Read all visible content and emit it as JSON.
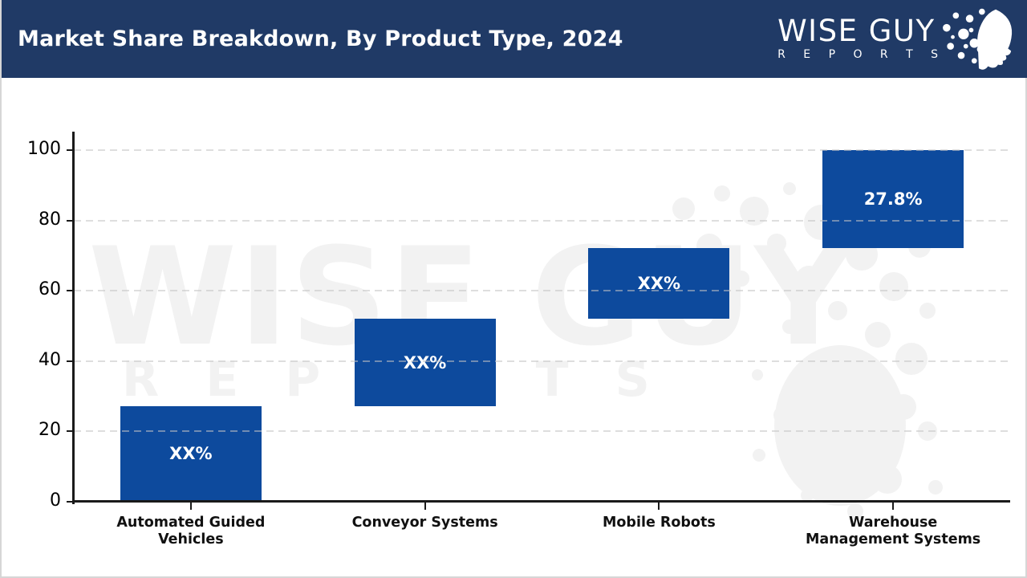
{
  "header": {
    "title": "Market Share Breakdown, By Product Type, 2024",
    "logo": {
      "wordmark": "WISE GUY",
      "subtext": "R E P O R T S"
    }
  },
  "watermark": {
    "wordmark": "WISE GUY",
    "subtext": "REPORTS"
  },
  "chart_data": {
    "type": "bar",
    "variant": "waterfall-floating-bars",
    "title": "Market Share Breakdown, By Product Type, 2024",
    "categories": [
      "Automated Guided Vehicles",
      "Conveyor Systems",
      "Mobile Robots",
      "Warehouse Management Systems"
    ],
    "segments": [
      {
        "category": "Automated Guided Vehicles",
        "start": 0,
        "end": 27,
        "value_label": "XX%"
      },
      {
        "category": "Conveyor Systems",
        "start": 27,
        "end": 52,
        "value_label": "XX%"
      },
      {
        "category": "Mobile Robots",
        "start": 52,
        "end": 72.2,
        "value_label": "XX%"
      },
      {
        "category": "Warehouse Management Systems",
        "start": 72.2,
        "end": 100,
        "value_label": "27.8%"
      }
    ],
    "xlabel": "",
    "ylabel": "",
    "yticks": [
      0,
      20,
      40,
      60,
      80,
      100
    ],
    "ylim": [
      0,
      105
    ],
    "grid": "horizontal-dashed",
    "legend": "none"
  },
  "colors": {
    "header_bg": "#203a66",
    "bar": "#0d4a9d",
    "bar_label": "#ffffff",
    "page_bg": "#ffffff",
    "watermark": "#f2f2f2",
    "axis": "#1a1a1a",
    "grid": "#d9d9d9",
    "border": "#d6d6d6"
  }
}
